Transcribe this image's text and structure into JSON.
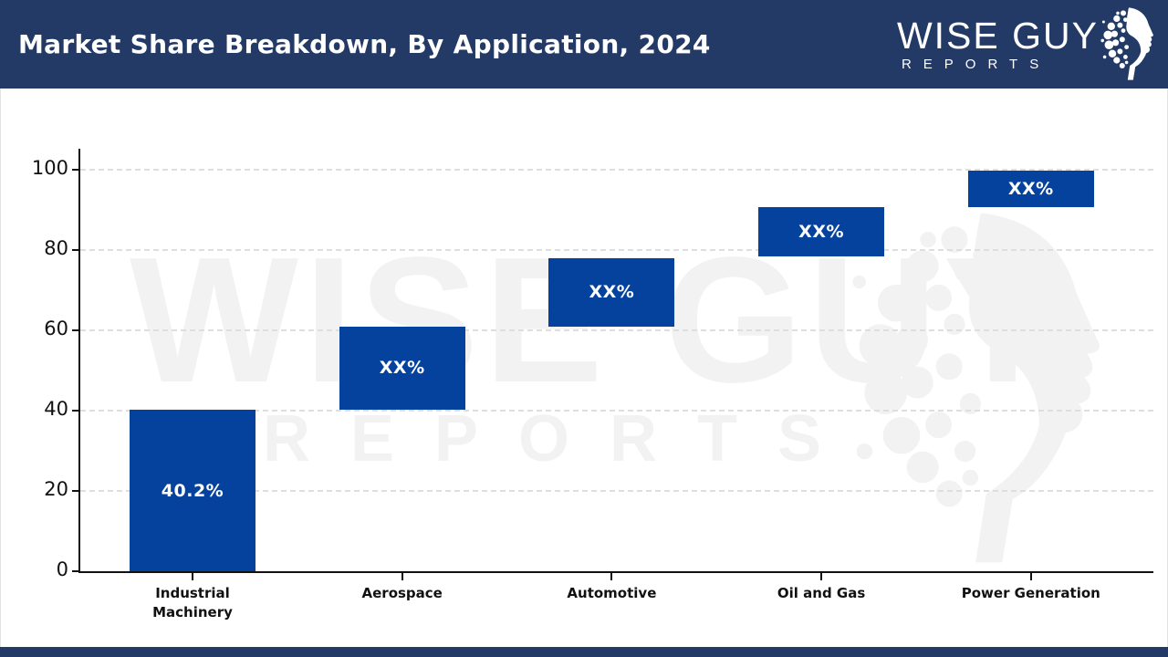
{
  "header": {
    "title": "Market Share Breakdown, By Application, 2024",
    "logo": {
      "primary": "WISE GUY",
      "secondary": "REPORTS"
    }
  },
  "watermark": {
    "primary": "WISE GUY",
    "secondary": "REPORTS"
  },
  "footer": {},
  "colors": {
    "header_bg": "#233a67",
    "footer_bg": "#233a67",
    "bar": "#05429e",
    "bar_label": "#ffffff",
    "grid": "#dedede",
    "axis": "#111111",
    "watermark": "#f2f2f2",
    "title_text": "#ffffff"
  },
  "chart_data": {
    "type": "bar",
    "subtype": "floating-waterfall",
    "title": "Market Share Breakdown, By Application, 2024",
    "xlabel": "",
    "ylabel": "",
    "categories": [
      "Industrial Machinery",
      "Aerospace",
      "Automotive",
      "Oil and Gas",
      "Power Generation"
    ],
    "category_label_lines": [
      [
        "Industrial",
        "Machinery"
      ],
      [
        "Aerospace"
      ],
      [
        "Automotive"
      ],
      [
        "Oil and Gas"
      ],
      [
        "Power Generation"
      ]
    ],
    "segments": [
      {
        "category": "Industrial Machinery",
        "start": 0,
        "end": 40.2,
        "label": "40.2%"
      },
      {
        "category": "Aerospace",
        "start": 40.2,
        "end": 61.0,
        "label": "XX%"
      },
      {
        "category": "Automotive",
        "start": 61.0,
        "end": 78.0,
        "label": "XX%"
      },
      {
        "category": "Oil and Gas",
        "start": 78.5,
        "end": 90.6,
        "label": "XX%"
      },
      {
        "category": "Power Generation",
        "start": 90.6,
        "end": 99.8,
        "label": "XX%"
      }
    ],
    "y_ticks": [
      0,
      20,
      40,
      60,
      80,
      100
    ],
    "ylim": [
      0,
      105
    ],
    "grid": "dashed-horizontal",
    "legend": null
  }
}
